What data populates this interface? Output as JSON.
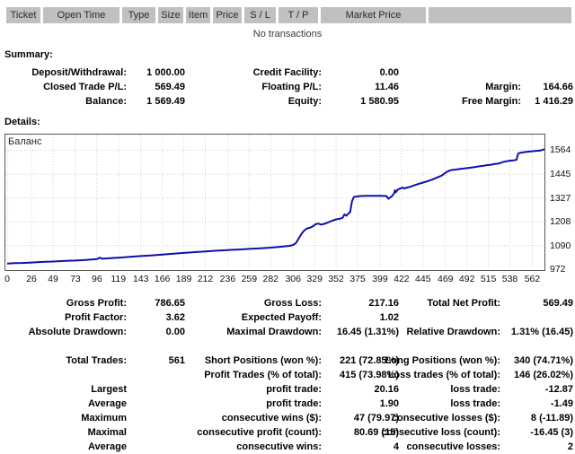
{
  "colors": {
    "header_bg": "#c0c0c0",
    "balance_line": "#0f0fa8",
    "grid_line": "#cfcfcf",
    "chart_border": "#555555"
  },
  "trades_table": {
    "columns": [
      {
        "label": "Ticket",
        "width": 38
      },
      {
        "label": "Open Time",
        "width": 85
      },
      {
        "label": "Type",
        "width": 37
      },
      {
        "label": "Size",
        "width": 28
      },
      {
        "label": "Item",
        "width": 27
      },
      {
        "label": "Price",
        "width": 32
      },
      {
        "label": "S / L",
        "width": 35
      },
      {
        "label": "T / P",
        "width": 44
      },
      {
        "label": "Market Price",
        "width": 117
      },
      {
        "label": "",
        "width": 159
      }
    ],
    "empty_message": "No transactions"
  },
  "summary": {
    "title": "Summary:",
    "rows": [
      [
        "Deposit/Withdrawal:",
        "1 000.00",
        "Credit Facility:",
        "0.00",
        "",
        ""
      ],
      [
        "Closed Trade P/L:",
        "569.49",
        "Floating P/L:",
        "11.46",
        "Margin:",
        "164.66"
      ],
      [
        "Balance:",
        "1 569.49",
        "Equity:",
        "1 580.95",
        "Free Margin:",
        "1 416.29"
      ]
    ]
  },
  "details": {
    "title": "Details:"
  },
  "chart_data": {
    "type": "line",
    "title": "",
    "legend": "Баланс",
    "legend_position": "top-left",
    "grid": true,
    "y_axis_position": "right",
    "x_ticks": [
      0,
      26,
      49,
      73,
      96,
      119,
      143,
      166,
      189,
      212,
      236,
      259,
      282,
      306,
      329,
      352,
      375,
      399,
      422,
      445,
      469,
      492,
      515,
      538,
      562
    ],
    "y_ticks": [
      972,
      1090,
      1208,
      1327,
      1445,
      1564
    ],
    "x_range": [
      0,
      575
    ],
    "y_range": [
      972,
      1642
    ],
    "series": [
      {
        "name": "Баланс",
        "color": "#0f0fa8",
        "points": [
          [
            0,
            1000
          ],
          [
            8,
            1002
          ],
          [
            16,
            1003
          ],
          [
            26,
            1005
          ],
          [
            38,
            1008
          ],
          [
            49,
            1010
          ],
          [
            62,
            1013
          ],
          [
            73,
            1015
          ],
          [
            84,
            1018
          ],
          [
            96,
            1022
          ],
          [
            99,
            1029
          ],
          [
            102,
            1024
          ],
          [
            108,
            1026
          ],
          [
            119,
            1029
          ],
          [
            131,
            1033
          ],
          [
            143,
            1037
          ],
          [
            155,
            1041
          ],
          [
            166,
            1045
          ],
          [
            178,
            1049
          ],
          [
            189,
            1053
          ],
          [
            201,
            1057
          ],
          [
            212,
            1060
          ],
          [
            224,
            1064
          ],
          [
            236,
            1067
          ],
          [
            248,
            1070
          ],
          [
            259,
            1073
          ],
          [
            271,
            1076
          ],
          [
            282,
            1079
          ],
          [
            294,
            1084
          ],
          [
            302,
            1088
          ],
          [
            306,
            1092
          ],
          [
            309,
            1102
          ],
          [
            312,
            1125
          ],
          [
            315,
            1148
          ],
          [
            318,
            1165
          ],
          [
            321,
            1175
          ],
          [
            324,
            1178
          ],
          [
            327,
            1185
          ],
          [
            330,
            1196
          ],
          [
            333,
            1199
          ],
          [
            336,
            1194
          ],
          [
            339,
            1197
          ],
          [
            342,
            1202
          ],
          [
            345,
            1208
          ],
          [
            348,
            1213
          ],
          [
            352,
            1220
          ],
          [
            356,
            1223
          ],
          [
            359,
            1228
          ],
          [
            361,
            1245
          ],
          [
            363,
            1238
          ],
          [
            365,
            1248
          ],
          [
            367,
            1255
          ],
          [
            369,
            1310
          ],
          [
            371,
            1331
          ],
          [
            374,
            1334
          ],
          [
            378,
            1336
          ],
          [
            384,
            1337
          ],
          [
            392,
            1337
          ],
          [
            400,
            1337
          ],
          [
            406,
            1336
          ],
          [
            408,
            1322
          ],
          [
            410,
            1330
          ],
          [
            412,
            1336
          ],
          [
            414,
            1350
          ],
          [
            415,
            1365
          ],
          [
            416,
            1355
          ],
          [
            417,
            1362
          ],
          [
            418,
            1368
          ],
          [
            420,
            1372
          ],
          [
            423,
            1378
          ],
          [
            425,
            1374
          ],
          [
            428,
            1378
          ],
          [
            432,
            1383
          ],
          [
            436,
            1390
          ],
          [
            440,
            1396
          ],
          [
            445,
            1403
          ],
          [
            450,
            1410
          ],
          [
            455,
            1418
          ],
          [
            460,
            1428
          ],
          [
            465,
            1438
          ],
          [
            468,
            1448
          ],
          [
            470,
            1455
          ],
          [
            473,
            1462
          ],
          [
            476,
            1466
          ],
          [
            480,
            1468
          ],
          [
            485,
            1471
          ],
          [
            490,
            1474
          ],
          [
            496,
            1477
          ],
          [
            500,
            1480
          ],
          [
            505,
            1484
          ],
          [
            510,
            1487
          ],
          [
            514,
            1490
          ],
          [
            518,
            1492
          ],
          [
            521,
            1495
          ],
          [
            524,
            1497
          ],
          [
            527,
            1499
          ],
          [
            530,
            1505
          ],
          [
            534,
            1509
          ],
          [
            538,
            1512
          ],
          [
            542,
            1514
          ],
          [
            545,
            1516
          ],
          [
            547,
            1548
          ],
          [
            550,
            1552
          ],
          [
            554,
            1555
          ],
          [
            558,
            1557
          ],
          [
            562,
            1559
          ],
          [
            566,
            1561
          ],
          [
            570,
            1562
          ],
          [
            575,
            1569
          ]
        ]
      }
    ]
  },
  "stats": {
    "gap_after_row": 2,
    "rows": [
      [
        "Gross Profit:",
        "786.65",
        "Gross Loss:",
        "217.16",
        "Total Net Profit:",
        "569.49"
      ],
      [
        "Profit Factor:",
        "3.62",
        "Expected Payoff:",
        "1.02",
        "",
        ""
      ],
      [
        "Absolute Drawdown:",
        "0.00",
        "Maximal Drawdown:",
        "16.45 (1.31%)",
        "Relative Drawdown:",
        "1.31% (16.45)"
      ],
      [
        "Total Trades:",
        "561",
        "Short Positions (won %):",
        "221 (72.85%)",
        "Long Positions (won %):",
        "340 (74.71%)"
      ],
      [
        "",
        "",
        "Profit Trades (% of total):",
        "415 (73.98%)",
        "Loss trades (% of total):",
        "146 (26.02%)"
      ],
      [
        "Largest",
        "",
        "profit trade:",
        "20.16",
        "loss trade:",
        "-12.87"
      ],
      [
        "Average",
        "",
        "profit trade:",
        "1.90",
        "loss trade:",
        "-1.49"
      ],
      [
        "Maximum",
        "",
        "consecutive wins ($):",
        "47 (79.97)",
        "consecutive losses ($):",
        "8 (-11.89)"
      ],
      [
        "Maximal",
        "",
        "consecutive profit (count):",
        "80.69 (15)",
        "consecutive loss (count):",
        "-16.45 (3)"
      ],
      [
        "Average",
        "",
        "consecutive wins:",
        "4",
        "consecutive losses:",
        "2"
      ]
    ]
  }
}
